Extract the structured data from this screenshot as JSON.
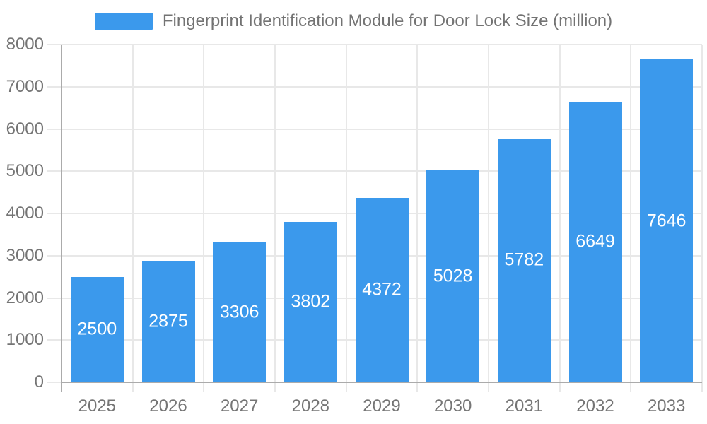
{
  "chart_data": {
    "type": "bar",
    "series_name": "Fingerprint Identification Module for Door Lock Size (million)",
    "title": "Fingerprint Identification Module for Door Lock Size (million)",
    "categories": [
      "2025",
      "2026",
      "2027",
      "2028",
      "2029",
      "2030",
      "2031",
      "2032",
      "2033"
    ],
    "values": [
      2500,
      2875,
      3306,
      3802,
      4372,
      5028,
      5782,
      6649,
      7646
    ],
    "value_labels": [
      "2500",
      "2875",
      "3306",
      "3802",
      "4372",
      "5028",
      "5782",
      "6649",
      "7646"
    ],
    "xlabel": "",
    "ylabel": "",
    "ylim": [
      0,
      8000
    ],
    "ytick_step": 1000,
    "yticks": [
      "0",
      "1000",
      "2000",
      "3000",
      "4000",
      "5000",
      "6000",
      "7000",
      "8000"
    ],
    "grid": true,
    "legend_position": "top-center",
    "colors": {
      "bar": "#3B99EC",
      "bar_value_text": "#ffffff",
      "axis_text": "#757575",
      "legend_text": "#737373",
      "grid_line": "#e8e8e8",
      "axis_line": "#ababab",
      "background": "#ffffff"
    }
  }
}
